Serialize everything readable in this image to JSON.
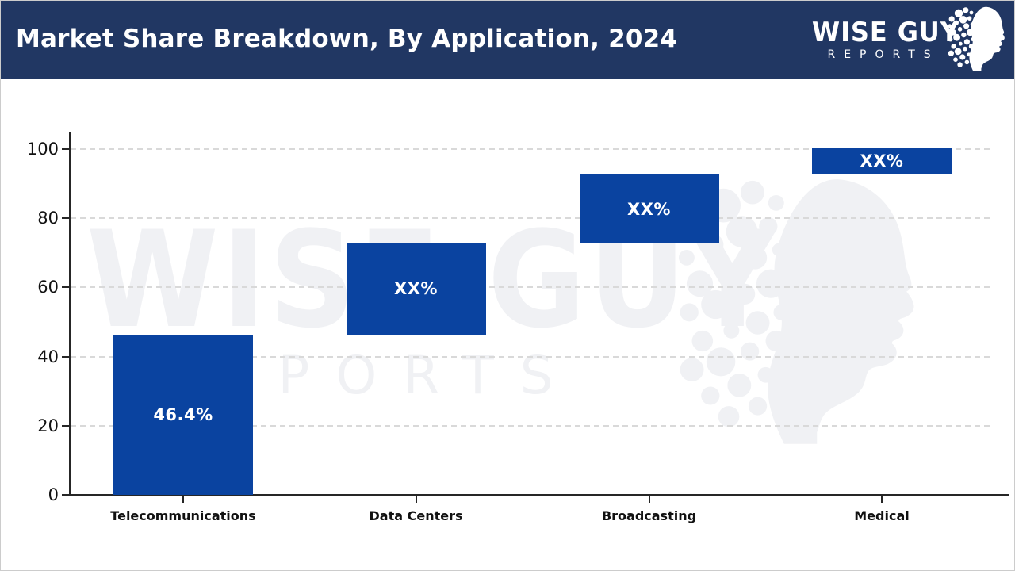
{
  "header": {
    "title": "Market Share Breakdown, By Application, 2024",
    "logo": {
      "line1": "WISE GUY",
      "line2": "REPORTS"
    }
  },
  "watermark": {
    "line1": "WISE GUY",
    "line2": "REPORTS"
  },
  "chart_data": {
    "type": "bar",
    "subtype": "waterfall",
    "title": "Market Share Breakdown, By Application, 2024",
    "categories": [
      "Telecommunications",
      "Data Centers",
      "Broadcasting",
      "Medical"
    ],
    "series": [
      {
        "name": "Market share (%)",
        "segments": [
          {
            "category": "Telecommunications",
            "label": "46.4%",
            "start": 0,
            "end": 46.4
          },
          {
            "category": "Data Centers",
            "label": "XX%",
            "start": 46.4,
            "end": 72.7
          },
          {
            "category": "Broadcasting",
            "label": "XX%",
            "start": 72.7,
            "end": 92.6
          },
          {
            "category": "Medical",
            "label": "XX%",
            "start": 92.6,
            "end": 100.4
          }
        ]
      }
    ],
    "yticks": [
      0,
      20,
      40,
      60,
      80,
      100
    ],
    "ylim": [
      0,
      105
    ],
    "xlabel": "",
    "ylabel": "",
    "grid": "dashed-horizontal",
    "legend": "none",
    "bar_color": "#0a43a0",
    "bar_label_color": "#ffffff",
    "axis_color": "#262626",
    "grid_color": "#d9d9d9",
    "header_color": "#213763",
    "watermark_color": "#f0f1f4"
  }
}
